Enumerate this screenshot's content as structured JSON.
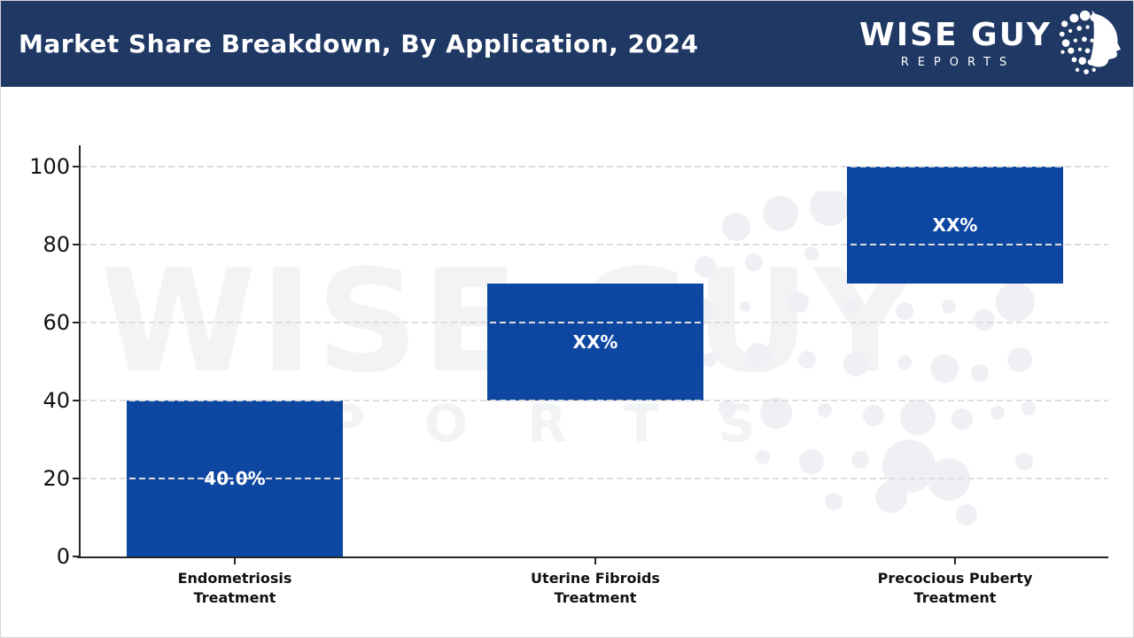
{
  "header": {
    "title": "Market Share Breakdown, By Application, 2024",
    "logo": {
      "wordmark": "WISE GUY",
      "subtext": "REPORTS"
    }
  },
  "watermark": {
    "wordmark": "WISE GUY",
    "subtext": "REPORTS"
  },
  "colors": {
    "header_bg": "#1f3864",
    "bar_fill": "#0d47a1",
    "bar_label_text": "#ffffff",
    "axis": "#262626",
    "gridline": "#dedede",
    "tick_label": "#111111",
    "watermark": "#f2f3f5"
  },
  "chart_data": {
    "type": "bar",
    "subtype": "floating-segments (waterfall-style market share)",
    "title": "Market Share Breakdown, By Application, 2024",
    "xlabel": "",
    "ylabel": "",
    "ylim": [
      0,
      105
    ],
    "yticks": [
      0,
      20,
      40,
      60,
      80,
      100
    ],
    "grid": "horizontal dashed, drawn above bars",
    "legend": "none",
    "categories": [
      "Endometriosis Treatment",
      "Uterine Fibroids Treatment",
      "Precocious Puberty Treatment"
    ],
    "category_lines": [
      [
        "Endometriosis",
        "Treatment"
      ],
      [
        "Uterine Fibroids",
        "Treatment"
      ],
      [
        "Precocious Puberty",
        "Treatment"
      ]
    ],
    "segments": [
      {
        "category": "Endometriosis Treatment",
        "start": 0,
        "end": 40,
        "value_label": "40.0%"
      },
      {
        "category": "Uterine Fibroids Treatment",
        "start": 40,
        "end": 70,
        "value_label": "XX%"
      },
      {
        "category": "Precocious Puberty Treatment",
        "start": 70,
        "end": 100,
        "value_label": "XX%"
      }
    ]
  }
}
